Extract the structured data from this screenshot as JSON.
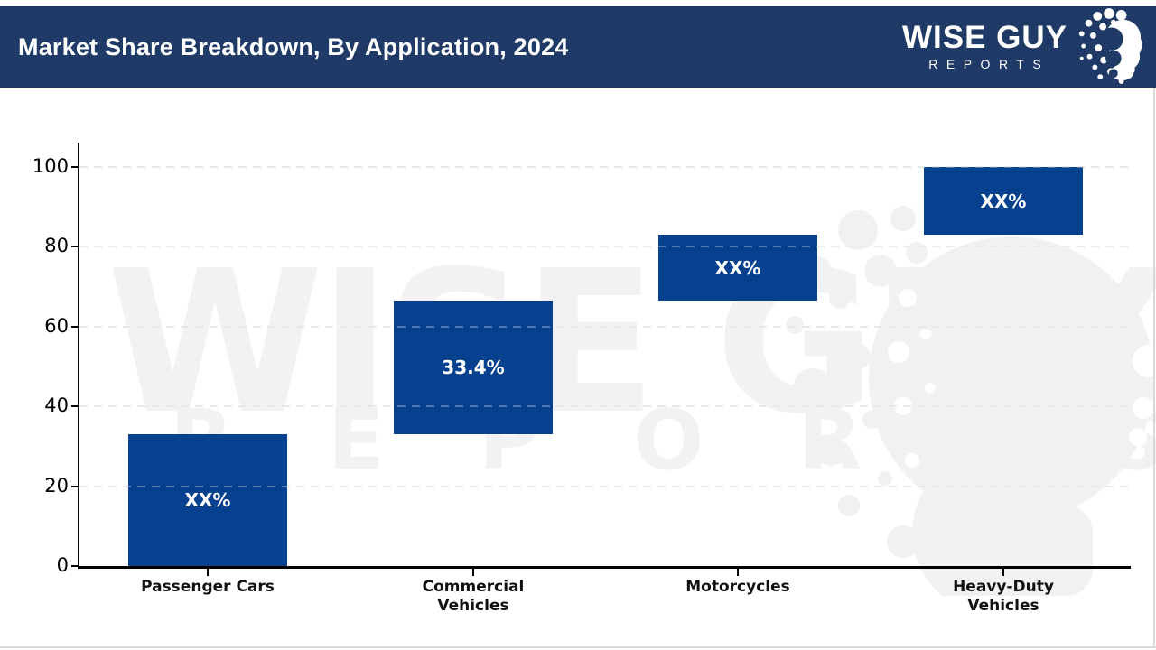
{
  "header": {
    "bg_color": "#1f3a66",
    "title": "Market Share Breakdown, By Application, 2024",
    "logo": {
      "line1": "WISE GUY",
      "line2": "REPORTS"
    }
  },
  "watermark": {
    "line1": "WISE GUY",
    "line2": "R E P O R T S"
  },
  "chart_data": {
    "type": "bar",
    "variant": "waterfall-stacked-percentage",
    "title": "Market Share Breakdown, By Application, 2024",
    "categories": [
      "Passenger Cars",
      "Commercial Vehicles",
      "Motorcycles",
      "Heavy-Duty Vehicles"
    ],
    "categories_lines": [
      [
        "Passenger Cars"
      ],
      [
        "Commercial",
        "Vehicles"
      ],
      [
        "Motorcycles"
      ],
      [
        "Heavy-Duty",
        "Vehicles"
      ]
    ],
    "segments": [
      {
        "category": "Passenger Cars",
        "start": 0,
        "end": 33.1,
        "label": "XX%"
      },
      {
        "category": "Commercial Vehicles",
        "start": 33.1,
        "end": 66.5,
        "label": "33.4%"
      },
      {
        "category": "Motorcycles",
        "start": 66.5,
        "end": 83,
        "label": "XX%"
      },
      {
        "category": "Heavy-Duty Vehicles",
        "start": 83,
        "end": 100,
        "label": "XX%"
      }
    ],
    "known_values": {
      "Commercial Vehicles": 33.4
    },
    "ylim": [
      0,
      100
    ],
    "yticks": [
      0,
      20,
      40,
      60,
      80,
      100
    ],
    "grid": "horizontal-dashed",
    "legend": "none",
    "bar_color": "#05418f",
    "bar_label_color": "#ffffff",
    "gridline_color": "#dedede",
    "axis_color": "#000000"
  }
}
